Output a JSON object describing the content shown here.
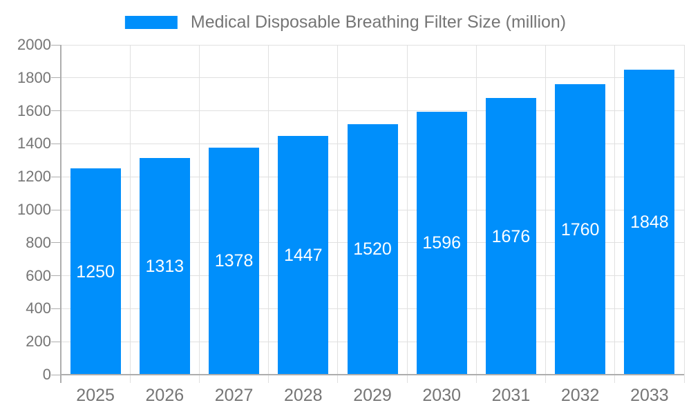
{
  "chart_data": {
    "type": "bar",
    "title": "Medical Disposable Breathing Filter Size (million)",
    "legend": {
      "position": "top",
      "entries": [
        "Medical Disposable Breathing Filter Size (million)"
      ]
    },
    "categories": [
      "2025",
      "2026",
      "2027",
      "2028",
      "2029",
      "2030",
      "2031",
      "2032",
      "2033"
    ],
    "series": [
      {
        "name": "Medical Disposable Breathing Filter Size (million)",
        "values": [
          1250,
          1313,
          1378,
          1447,
          1520,
          1596,
          1676,
          1760,
          1848
        ]
      }
    ],
    "value_labels_shown": true,
    "xlabel": "",
    "ylabel": "",
    "ylim": [
      0,
      2000
    ],
    "ytick_step": 200,
    "ytick_labels": [
      "0",
      "200",
      "400",
      "600",
      "800",
      "1000",
      "1200",
      "1400",
      "1600",
      "1800",
      "2000"
    ],
    "grid": true,
    "colors": {
      "bar": "#008FFB",
      "value_label": "#ffffff",
      "axis_text": "#757575",
      "grid_line": "#e0e0e0",
      "axis_line": "#adadad",
      "background": "#ffffff"
    }
  }
}
